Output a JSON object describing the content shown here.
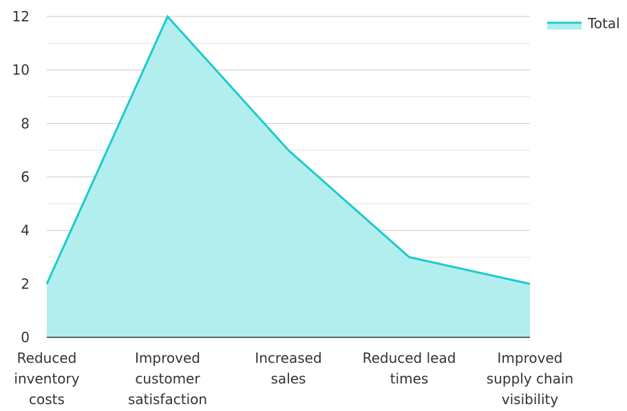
{
  "chart_data": {
    "type": "area",
    "categories": [
      "Reduced inventory costs",
      "Improved customer satisfaction",
      "Increased sales",
      "Reduced lead times",
      "Improved supply chain visibility"
    ],
    "category_lines": [
      [
        "Reduced",
        "inventory",
        "costs"
      ],
      [
        "Improved",
        "customer",
        "satisfaction"
      ],
      [
        "Increased",
        "sales"
      ],
      [
        "Reduced lead",
        "times"
      ],
      [
        "Improved",
        "supply chain",
        "visibility"
      ]
    ],
    "series": [
      {
        "name": "Total",
        "values": [
          2,
          12,
          7,
          3,
          2
        ]
      }
    ],
    "ylim": [
      0,
      12
    ],
    "yticks": [
      0,
      2,
      4,
      6,
      8,
      10,
      12
    ],
    "grid": true,
    "legend": "top-right",
    "colors": {
      "line": "#1ccbcb",
      "fill": "#b2eeee",
      "grid": "#cccccc",
      "axis": "#333333"
    },
    "title": "",
    "xlabel": "",
    "ylabel": ""
  }
}
